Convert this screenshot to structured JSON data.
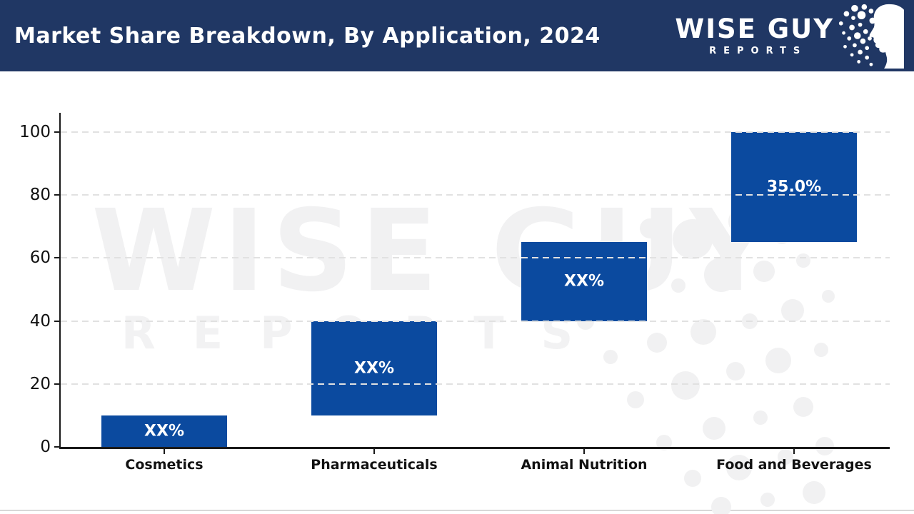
{
  "header": {
    "title": "Market Share Breakdown, By Application, 2024",
    "bg_color": "#203764",
    "logo": {
      "line1": "WISE GUY",
      "line2": "REPORTS"
    }
  },
  "watermark": {
    "line1": "WISE GUY",
    "line2": "REPORTS"
  },
  "chart_data": {
    "type": "bar",
    "subtype": "floating-waterfall",
    "title": "Market Share Breakdown, By Application, 2024",
    "xlabel": "",
    "ylabel": "",
    "categories": [
      "Cosmetics",
      "Pharmaceuticals",
      "Animal Nutrition",
      "Food and Beverages"
    ],
    "segments": [
      {
        "category": "Cosmetics",
        "from": 0,
        "to": 10,
        "label": "XX%"
      },
      {
        "category": "Pharmaceuticals",
        "from": 10,
        "to": 40,
        "label": "XX%"
      },
      {
        "category": "Animal Nutrition",
        "from": 40,
        "to": 65,
        "label": "XX%"
      },
      {
        "category": "Food and Beverages",
        "from": 65,
        "to": 100,
        "label": "35.0%"
      }
    ],
    "y_ticks": [
      0,
      20,
      40,
      60,
      80,
      100
    ],
    "ylim": [
      0,
      105
    ],
    "grid": true,
    "grid_style": "dashed",
    "grid_color": "#e1e1e1",
    "bar_color": "#0b4a9f",
    "bar_label_color": "#ffffff",
    "axis_color": "#1a1a1a"
  }
}
